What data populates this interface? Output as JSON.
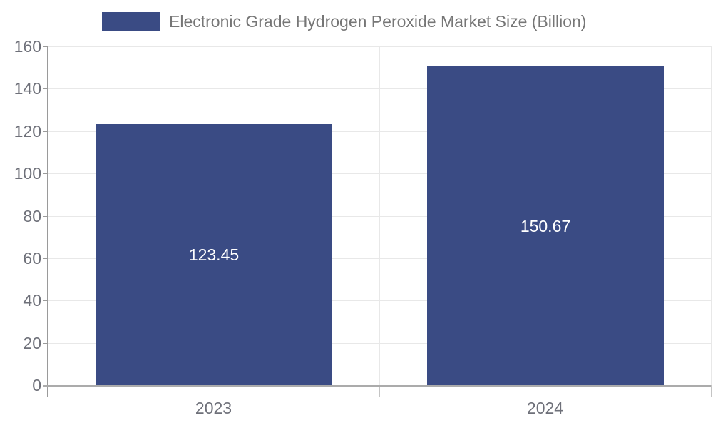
{
  "legend": {
    "label": "Electronic Grade Hydrogen Peroxide Market Size (Billion)"
  },
  "chart_data": {
    "type": "bar",
    "title": "Electronic Grade Hydrogen Peroxide Market Size (Billion)",
    "categories": [
      "2023",
      "2024"
    ],
    "values": [
      123.45,
      150.67
    ],
    "value_labels": [
      "123.45",
      "150.67"
    ],
    "xlabel": "",
    "ylabel": "",
    "ylim": [
      0,
      160
    ],
    "ytick_step": 20,
    "ytick_labels": [
      "0",
      "20",
      "40",
      "60",
      "80",
      "100",
      "120",
      "140",
      "160"
    ],
    "grid": true,
    "legend_position": "top-left",
    "colors": {
      "bar": "#3a4b84",
      "value_label": "#ffffff",
      "axis_line": "#9a9a9a",
      "baseline": "#ababab",
      "gridline": "#e8e8e8",
      "tick_text": "#6e7079",
      "legend_text": "#767676"
    }
  }
}
